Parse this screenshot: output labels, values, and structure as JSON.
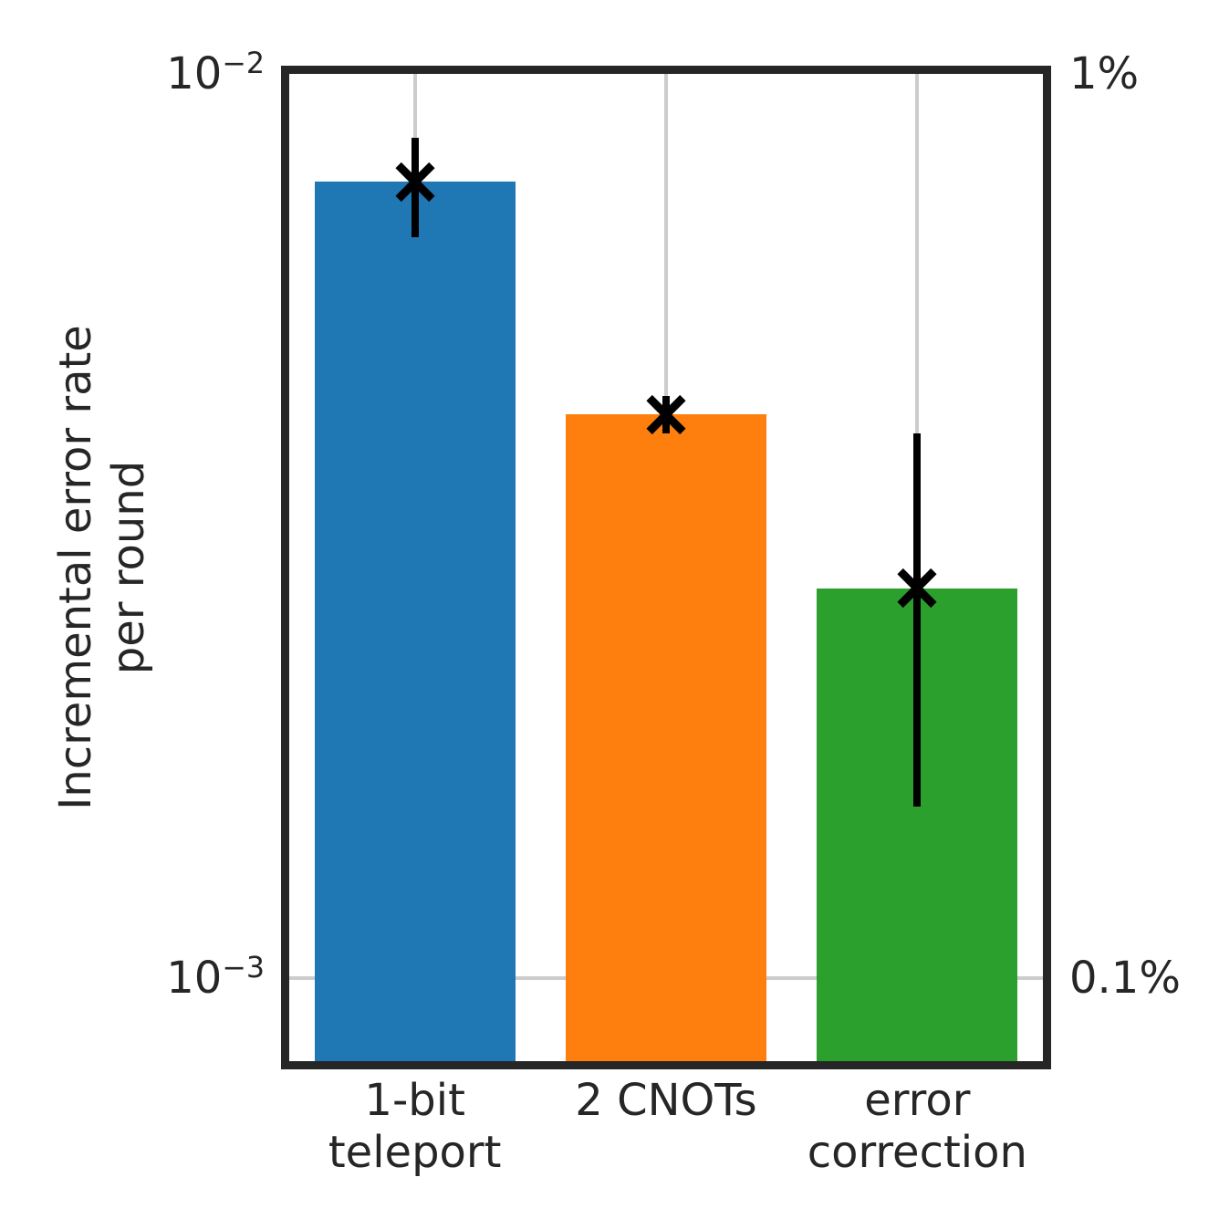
{
  "page": {
    "background": "#ffffff",
    "text_color": "#262626"
  },
  "chart_data": {
    "type": "bar",
    "y_scale": "log",
    "ylim": [
      0.00081,
      0.01
    ],
    "grid": true,
    "grid_color": "#cccccc",
    "frame_color": "#262626",
    "error_bar_color": "#000000",
    "marker": "x",
    "bar_width_fraction": 0.8,
    "ylabel_lines": [
      "Incremental error rate",
      "per round"
    ],
    "categories": [
      "1-bit teleport",
      "2 CNOTs",
      "error correction"
    ],
    "bars": [
      {
        "label": "1-bit teleport",
        "label_lines": [
          "1-bit",
          "teleport"
        ],
        "value": 0.0076,
        "error_low": 0.0066,
        "error_high": 0.0085,
        "color": "#1f77b4"
      },
      {
        "label": "2 CNOTs",
        "label_lines": [
          "2 CNOTs"
        ],
        "value": 0.0042,
        "error_low": 0.004,
        "error_high": 0.0044,
        "color": "#ff7f0e"
      },
      {
        "label": "error correction",
        "label_lines": [
          "error",
          "correction"
        ],
        "value": 0.0027,
        "error_low": 0.00155,
        "error_high": 0.004,
        "color": "#2ca02c"
      }
    ],
    "left_axis_ticks": [
      {
        "value": 0.01,
        "base": "10",
        "exponent": "−2"
      },
      {
        "value": 0.001,
        "base": "10",
        "exponent": "−3"
      }
    ],
    "right_axis_ticks": [
      {
        "value": 0.01,
        "label": "1%"
      },
      {
        "value": 0.001,
        "label": "0.1%"
      }
    ]
  }
}
